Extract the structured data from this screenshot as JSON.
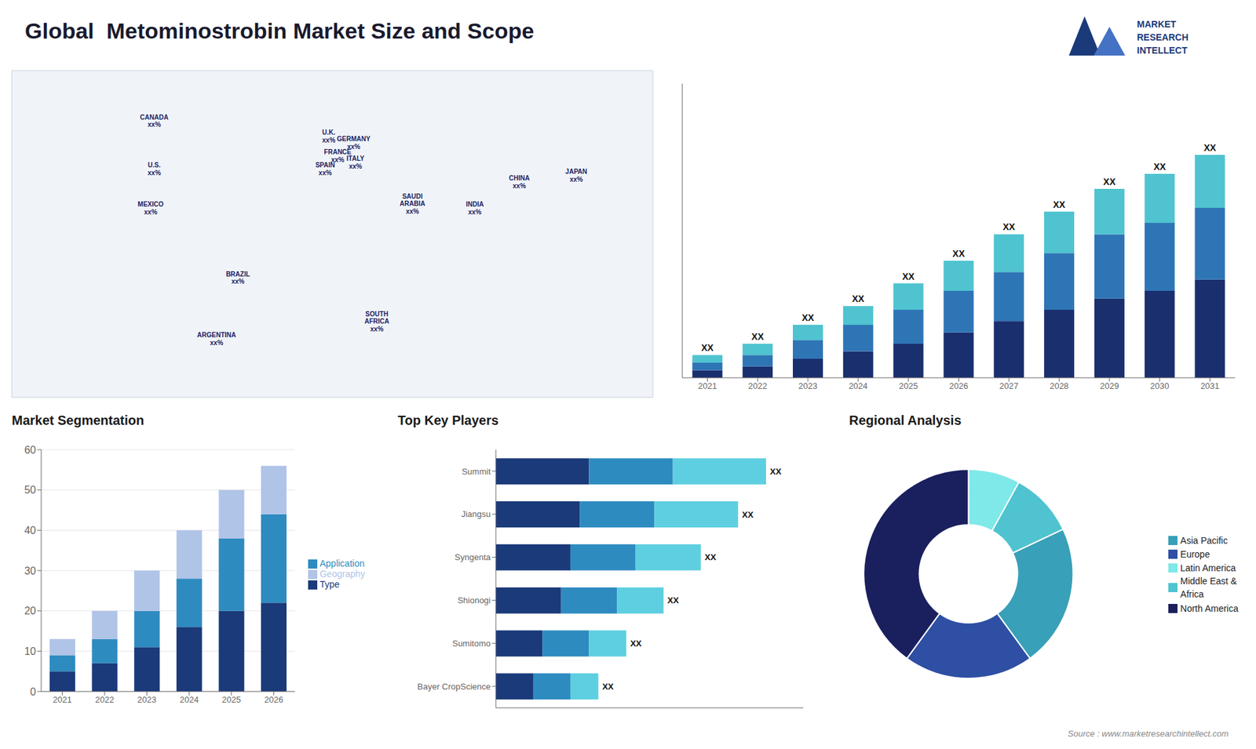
{
  "title": "Global  Metominostrobin Market Size and Scope",
  "annotations": [
    "MARKET",
    "RESEARCH",
    "INTELLECT",
    "Source : www.marketresearchintellect.com"
  ],
  "chart_data": [
    {
      "type": "scatter",
      "xlim": [
        -180,
        180
      ],
      "ylim": [
        -65,
        85
      ],
      "tick_labels": false,
      "annotations": [
        {
          "text": "CANADA\nxx%",
          "x": -100,
          "y": 62
        },
        {
          "text": "U.S.\nxx%",
          "x": -100,
          "y": 40
        },
        {
          "text": "MEXICO\nxx%",
          "x": -102,
          "y": 22
        },
        {
          "text": "BRAZIL\nxx%",
          "x": -53,
          "y": -10
        },
        {
          "text": "ARGENTINA\nxx%",
          "x": -65,
          "y": -38
        },
        {
          "text": "U.K.\nxx%",
          "x": -2,
          "y": 55
        },
        {
          "text": "FRANCE\nxx%",
          "x": 3,
          "y": 46
        },
        {
          "text": "SPAIN\nxx%",
          "x": -4,
          "y": 40
        },
        {
          "text": "GERMANY\nxx%",
          "x": 12,
          "y": 52
        },
        {
          "text": "ITALY\nxx%",
          "x": 13,
          "y": 43
        },
        {
          "text": "SAUDI\nARABIA\nxx%",
          "x": 45,
          "y": 24
        },
        {
          "text": "SOUTH\nAFRICA\nxx%",
          "x": 25,
          "y": -30
        },
        {
          "text": "CHINA\nxx%",
          "x": 105,
          "y": 34
        },
        {
          "text": "INDIA\nxx%",
          "x": 80,
          "y": 22
        },
        {
          "text": "JAPAN\nxx%",
          "x": 137,
          "y": 37
        }
      ]
    },
    {
      "type": "bar",
      "stacked": true,
      "categories": [
        "2021",
        "2022",
        "2023",
        "2024",
        "2025",
        "2026",
        "2027",
        "2028",
        "2029",
        "2030",
        "2031"
      ],
      "series": [
        {
          "color": "#1a2f6e",
          "values": [
            2,
            3,
            5,
            7,
            9,
            12,
            15,
            18,
            21,
            23,
            26
          ]
        },
        {
          "color": "#2e75b6",
          "values": [
            2,
            3,
            5,
            7,
            9,
            11,
            13,
            15,
            17,
            18,
            19
          ]
        },
        {
          "color": "#4fc3d0",
          "values": [
            2,
            3,
            4,
            5,
            7,
            8,
            10,
            11,
            12,
            13,
            14
          ]
        }
      ],
      "ylim": [
        0,
        77.88
      ],
      "tick_labels": "x",
      "annotations": [
        {
          "text": "XX",
          "x": "2021"
        },
        {
          "text": "XX",
          "x": "2022"
        },
        {
          "text": "XX",
          "x": "2023"
        },
        {
          "text": "XX",
          "x": "2024"
        },
        {
          "text": "XX",
          "x": "2025"
        },
        {
          "text": "XX",
          "x": "2026"
        },
        {
          "text": "XX",
          "x": "2027"
        },
        {
          "text": "XX",
          "x": "2028"
        },
        {
          "text": "XX",
          "x": "2029"
        },
        {
          "text": "XX",
          "x": "2030"
        },
        {
          "text": "XX",
          "x": "2031"
        }
      ]
    },
    {
      "type": "bar",
      "title": "Market Segmentation",
      "stacked": true,
      "categories": [
        "2021",
        "2022",
        "2023",
        "2024",
        "2025",
        "2026"
      ],
      "series": [
        {
          "name": "Type",
          "color": "#1a3a7a",
          "values": [
            5,
            7,
            11,
            16,
            20,
            22
          ]
        },
        {
          "name": "Application",
          "color": "#2e8bc0",
          "values": [
            4,
            6,
            9,
            12,
            18,
            22
          ]
        },
        {
          "name": "Geography",
          "color": "#b0c4e8",
          "values": [
            4,
            7,
            10,
            12,
            12,
            12
          ]
        }
      ],
      "ylim": [
        0,
        60
      ],
      "yticks": [
        0,
        10,
        20,
        30,
        40,
        50,
        60
      ],
      "grid": true,
      "legend": "right"
    },
    {
      "type": "bar",
      "title": "Top Key Players",
      "orientation": "horizontal",
      "stacked": true,
      "categories": [
        "Summit",
        "Jiangsu",
        "Syngenta",
        "Shionogi",
        "Sumitomo",
        "Bayer CropScience"
      ],
      "series": [
        {
          "color": "#1a3a7a",
          "values": [
            5,
            4.5,
            4,
            3.5,
            2.5,
            2
          ]
        },
        {
          "color": "#2e8bc0",
          "values": [
            4.5,
            4,
            3.5,
            3,
            2.5,
            2
          ]
        },
        {
          "color": "#5ecfe0",
          "values": [
            5,
            4.5,
            3.5,
            2.5,
            2,
            1.5
          ]
        }
      ],
      "xlim": [
        0,
        16.5
      ],
      "tick_labels": "y",
      "annotations": [
        {
          "text": "XX",
          "y": "Summit"
        },
        {
          "text": "XX",
          "y": "Jiangsu"
        },
        {
          "text": "XX",
          "y": "Syngenta"
        },
        {
          "text": "XX",
          "y": "Shionogi"
        },
        {
          "text": "XX",
          "y": "Sumitomo"
        },
        {
          "text": "XX",
          "y": "Bayer CropScience"
        }
      ]
    },
    {
      "type": "pie",
      "title": "Regional Analysis",
      "categories": [
        "Latin America",
        "Middle East &\nAfrica",
        "Asia Pacific",
        "Europe",
        "North America"
      ],
      "values": [
        8,
        10,
        22,
        20,
        40
      ],
      "colors": [
        "#7fe8e8",
        "#4fc3d0",
        "#38a0b8",
        "#2e4fa3",
        "#1a1f5e"
      ],
      "legend": "right"
    }
  ]
}
